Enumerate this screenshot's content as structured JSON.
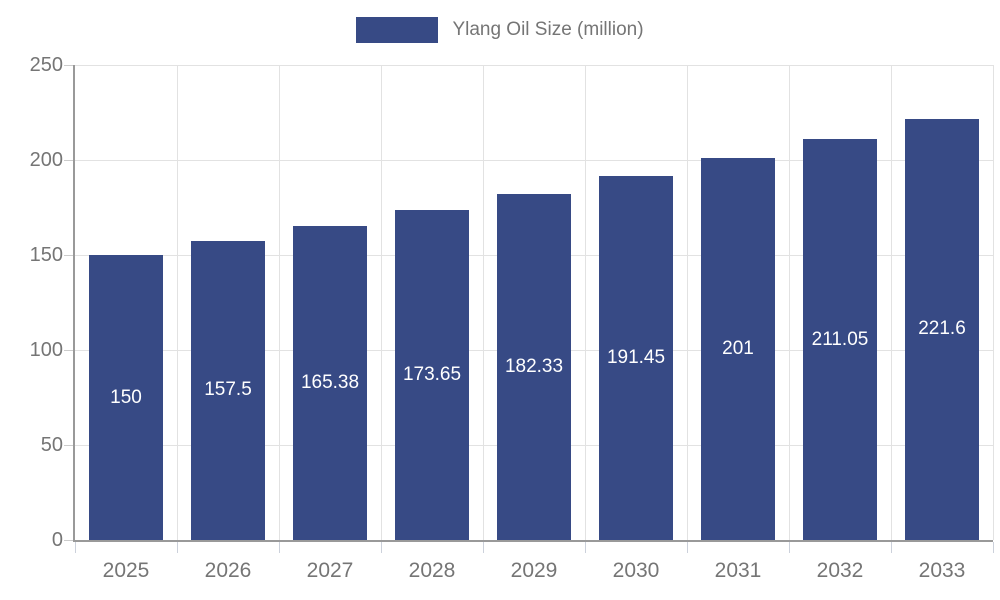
{
  "legend": {
    "label": "Ylang Oil Size (million)"
  },
  "chart_data": {
    "type": "bar",
    "title": "",
    "xlabel": "",
    "ylabel": "",
    "categories": [
      "2025",
      "2026",
      "2027",
      "2028",
      "2029",
      "2030",
      "2031",
      "2032",
      "2033"
    ],
    "series": [
      {
        "name": "Ylang Oil Size (million)",
        "values": [
          150,
          157.5,
          165.38,
          173.65,
          182.33,
          191.45,
          201,
          211.05,
          221.6
        ],
        "labels": [
          "150",
          "157.5",
          "165.38",
          "173.65",
          "182.33",
          "191.45",
          "201",
          "211.05",
          "221.6"
        ]
      }
    ],
    "ylim": [
      0,
      250
    ],
    "yticks": [
      0,
      50,
      100,
      150,
      200,
      250
    ],
    "grid": true,
    "legend_position": "top-center",
    "colors": {
      "bar": "#374a85",
      "value_label": "#ffffff",
      "axis_text": "#757575",
      "gridline": "#e2e2e2",
      "axis_line": "#999999"
    }
  }
}
